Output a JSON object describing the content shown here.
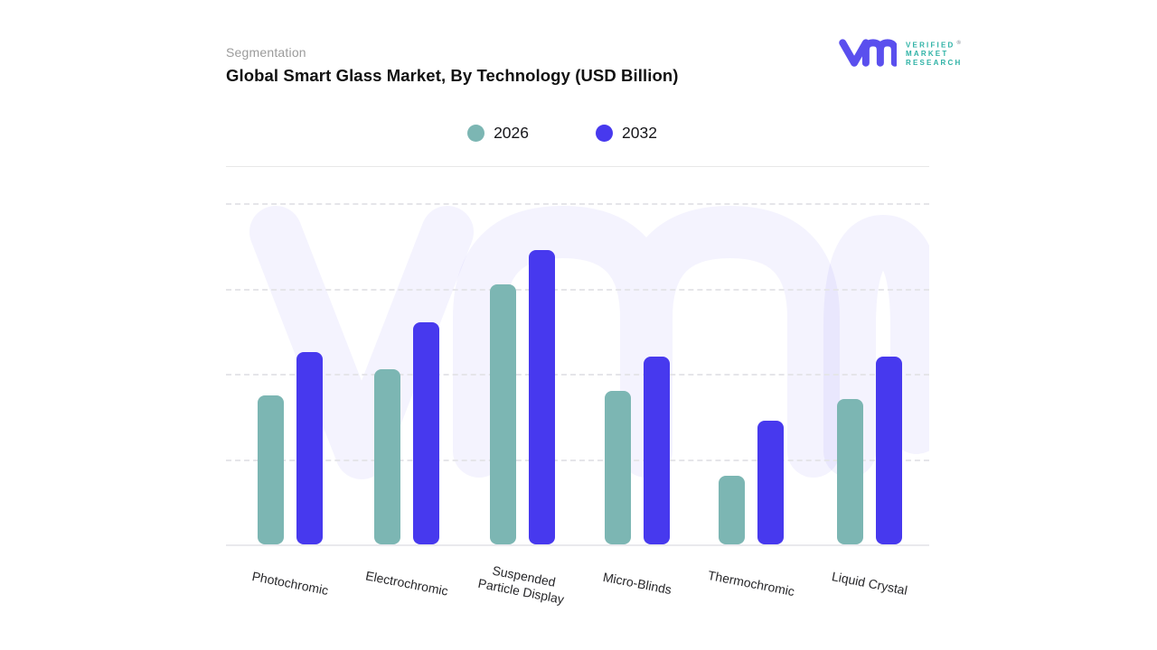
{
  "header": {
    "eyebrow": "Segmentation",
    "title": "Global Smart Glass Market, By Technology (USD Billion)"
  },
  "brand": {
    "glyph": "vm-monogram",
    "glyph_color": "#5a4fee",
    "text_color": "#2eb2a6",
    "lines": [
      "VERIFIED",
      "MARKET",
      "RESEARCH"
    ],
    "registered_mark": "®"
  },
  "legend": {
    "items": [
      {
        "label": "2026",
        "color": "#7cb6b3"
      },
      {
        "label": "2032",
        "color": "#4739ee"
      }
    ]
  },
  "chart_data": {
    "type": "bar",
    "title": "Global Smart Glass Market, By Technology (USD Billion)",
    "unit": "USD Billion",
    "categories": [
      "Photochromic",
      "Electrochromic",
      "Suspended Particle Display",
      "Micro-Blinds",
      "Thermochromic",
      "Liquid Crystal"
    ],
    "categories_display": [
      [
        "Photochromic"
      ],
      [
        "Electrochromic"
      ],
      [
        "Suspended",
        "Particle Display"
      ],
      [
        "Micro-Blinds"
      ],
      [
        "Thermochromic"
      ],
      [
        "Liquid Crystal"
      ]
    ],
    "series": [
      {
        "name": "2026",
        "color": "#7cb6b3",
        "values": [
          1.75,
          2.05,
          3.05,
          1.8,
          0.8,
          1.7
        ]
      },
      {
        "name": "2032",
        "color": "#4739ee",
        "values": [
          2.25,
          2.6,
          3.45,
          2.2,
          1.45,
          2.2
        ]
      }
    ],
    "ylim": [
      0,
      4
    ],
    "y_axis_labels_visible": false,
    "gridlines": {
      "style": "dashed",
      "horizontal": true,
      "count": 4
    },
    "legend_position": "top-center",
    "watermark_text": "vmr"
  }
}
